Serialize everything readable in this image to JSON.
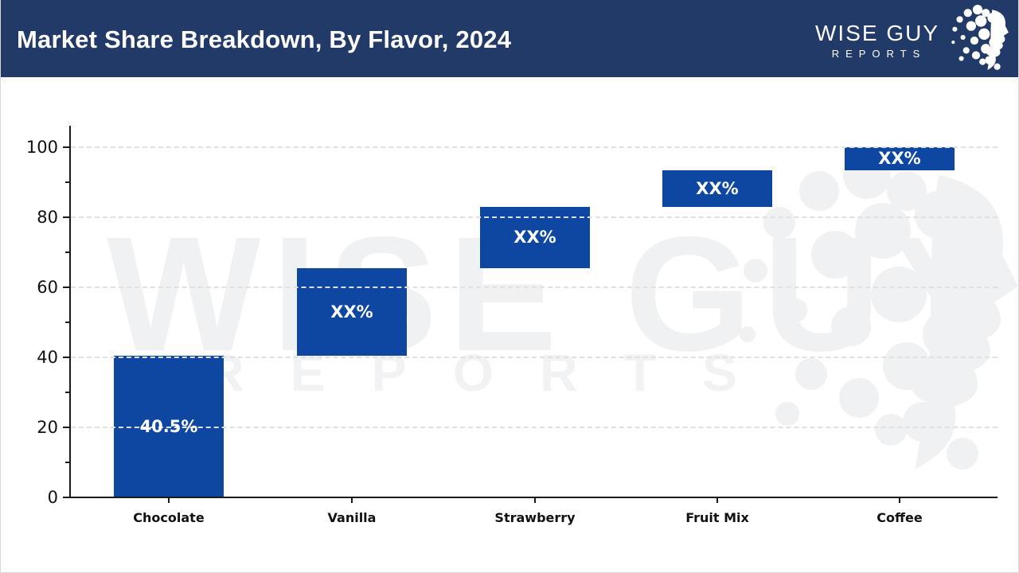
{
  "header": {
    "title": "Market Share Breakdown, By Flavor, 2024",
    "background_color": "#223a68",
    "logo": {
      "line1": "WISE GUY",
      "line2": "REPORTS"
    }
  },
  "watermark": {
    "line1": "WISE GUY",
    "line2": "REPORTS"
  },
  "chart_data": {
    "type": "bar",
    "subtype": "floating-waterfall",
    "title": "Market Share Breakdown, By Flavor, 2024",
    "categories": [
      "Chocolate",
      "Vanilla",
      "Strawberry",
      "Fruit Mix",
      "Coffee"
    ],
    "segments": [
      {
        "category": "Chocolate",
        "start": 0,
        "end": 40.5,
        "value": 40.5,
        "label": "40.5%"
      },
      {
        "category": "Vanilla",
        "start": 40.5,
        "end": 65.5,
        "value": 25,
        "label": "XX%"
      },
      {
        "category": "Strawberry",
        "start": 65.5,
        "end": 83,
        "value": 17.5,
        "label": "XX%"
      },
      {
        "category": "Fruit Mix",
        "start": 83,
        "end": 93.5,
        "value": 10.5,
        "label": "XX%"
      },
      {
        "category": "Coffee",
        "start": 93.5,
        "end": 100,
        "value": 6.5,
        "label": "XX%"
      }
    ],
    "xlabel": "",
    "ylabel": "",
    "ylim": [
      0,
      100
    ],
    "yticks": [
      0,
      20,
      40,
      60,
      80,
      100
    ],
    "minor_ytick_step": 10,
    "grid": {
      "horizontal": true,
      "style": "dashed",
      "color": "#e0e0e0",
      "drawn_over_bars": true
    },
    "legend": "none",
    "bar_color": "#0d47a1",
    "bar_label_color": "#ffffff",
    "axis_color": "#1a1a1a",
    "tick_label_color": "#111111"
  }
}
